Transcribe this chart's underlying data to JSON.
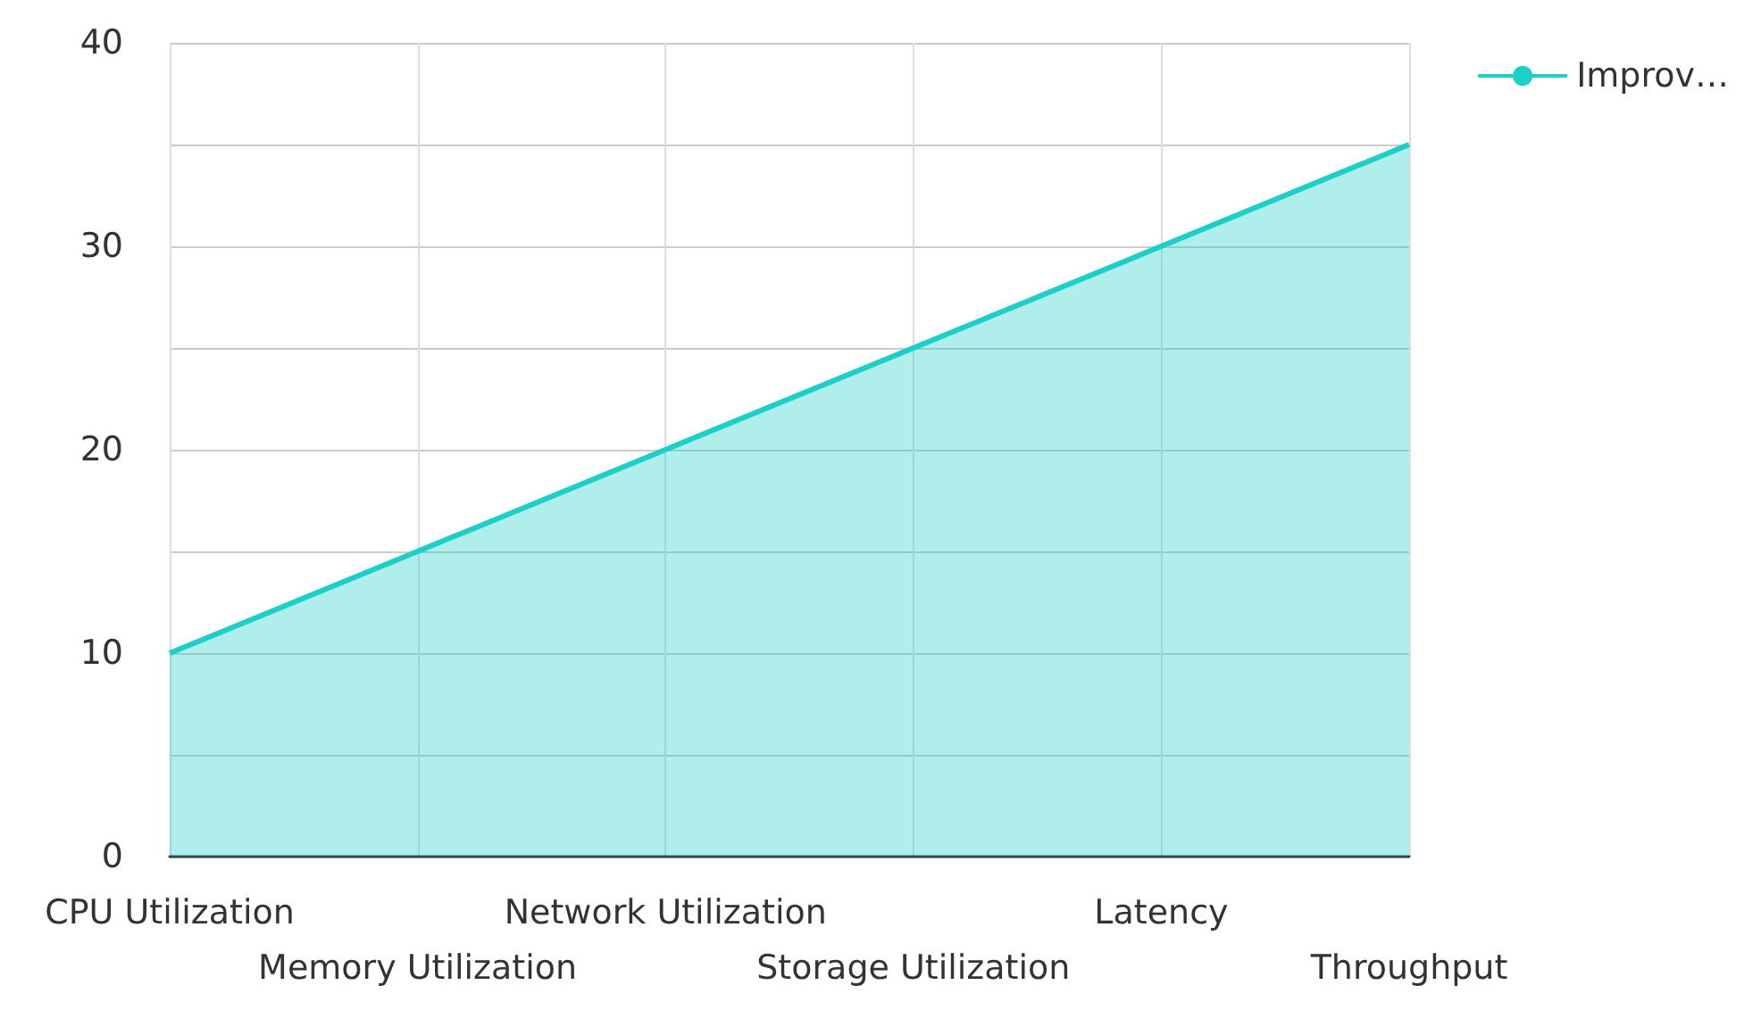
{
  "chart_data": {
    "type": "area",
    "categories": [
      "CPU Utilization",
      "Memory Utilization",
      "Network Utilization",
      "Storage Utilization",
      "Latency",
      "Throughput"
    ],
    "series": [
      {
        "name": "Improv…",
        "color": "#1ccfc9",
        "values": [
          10,
          15,
          20,
          25,
          30,
          35
        ]
      }
    ],
    "ylim": [
      0,
      40
    ],
    "yticks": [
      0,
      {
        "value": 5,
        "label": null
      },
      10,
      {
        "value": 15,
        "label": null
      },
      20,
      {
        "value": 25,
        "label": null
      },
      30,
      {
        "value": 35,
        "label": null
      },
      40
    ],
    "grid": true,
    "legend": "top right",
    "marker": "none"
  }
}
